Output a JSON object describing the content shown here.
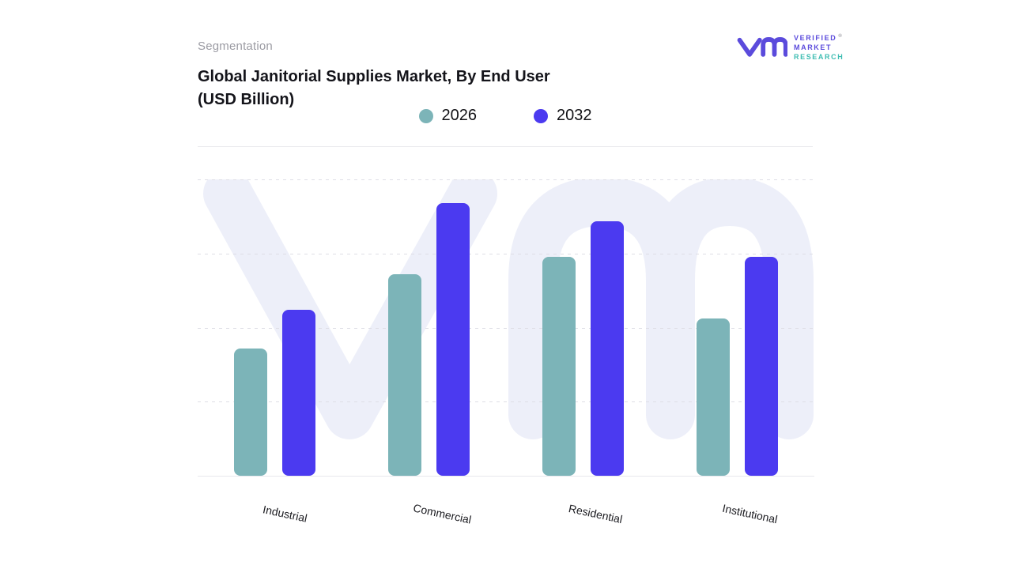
{
  "eyebrow": "Segmentation",
  "title_line1": "Global Janitorial Supplies Market, By End User",
  "title_line2": "(USD Billion)",
  "logo": {
    "word1": "VERIFIED",
    "registered": "®",
    "word2": "MARKET",
    "word3": "RESEARCH",
    "purple": "#5b4bdc",
    "teal": "#3ebdb2"
  },
  "colors": {
    "series_2026": "#7cb4b8",
    "series_2032": "#4b3af0",
    "watermark": "#edeff9"
  },
  "chart_data": {
    "type": "bar",
    "title": "Global Janitorial Supplies Market, By End User (USD Billion)",
    "categories": [
      "Industrial",
      "Commercial",
      "Residential",
      "Institutional"
    ],
    "series": [
      {
        "name": "2026",
        "color": "#7cb4b8",
        "values": [
          43,
          68,
          74,
          53
        ]
      },
      {
        "name": "2032",
        "color": "#4b3af0",
        "values": [
          56,
          92,
          86,
          74
        ]
      }
    ],
    "xlabel": "",
    "ylabel": "",
    "ylim": [
      0,
      100
    ],
    "gridline_step": 25,
    "grid": "horizontal-dashed",
    "y_tick_labels_shown": false,
    "legend_position": "top-center"
  }
}
